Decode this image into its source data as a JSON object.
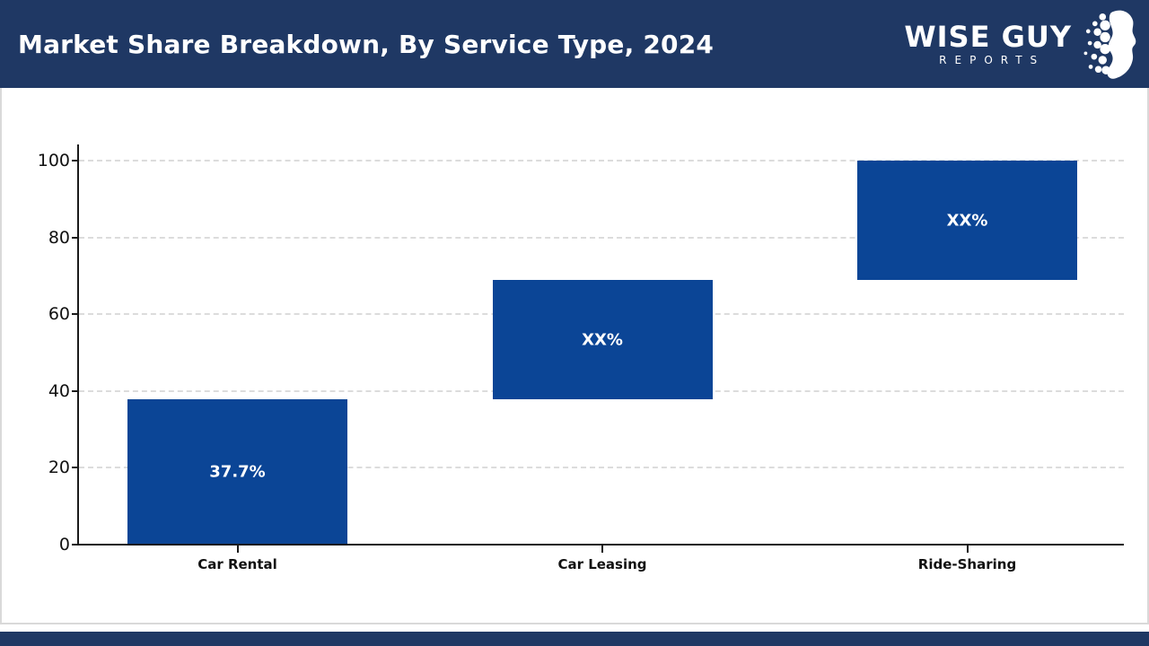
{
  "header": {
    "title": "Market Share Breakdown, By Service Type, 2024",
    "bg_color": "#1f3864",
    "logo": {
      "line1": "WISE GUY",
      "line2": "REPORTS"
    }
  },
  "watermark": {
    "line1": "WISE GUY",
    "line2": "REPORTS"
  },
  "footer": {
    "bg_color": "#1f3864"
  },
  "chart_data": {
    "type": "bar",
    "subtype": "waterfall",
    "title": "Market Share Breakdown, By Service Type, 2024",
    "categories": [
      "Car Rental",
      "Car Leasing",
      "Ride-Sharing"
    ],
    "bars": [
      {
        "category": "Car Rental",
        "start": 0,
        "end": 37.7,
        "label": "37.7%"
      },
      {
        "category": "Car Leasing",
        "start": 37.7,
        "end": 69,
        "label": "XX%"
      },
      {
        "category": "Ride-Sharing",
        "start": 69,
        "end": 100,
        "label": "XX%"
      }
    ],
    "xlabel": "",
    "ylabel": "",
    "ylim": [
      0,
      105
    ],
    "yticks": [
      0,
      20,
      40,
      60,
      80,
      100
    ],
    "grid": "horizontal-dashed",
    "legend": "none",
    "bar_color": "#0b4596",
    "bar_label_color": "#ffffff",
    "grid_color": "#dcdcdc",
    "axis_color": "#1a1a1a"
  }
}
